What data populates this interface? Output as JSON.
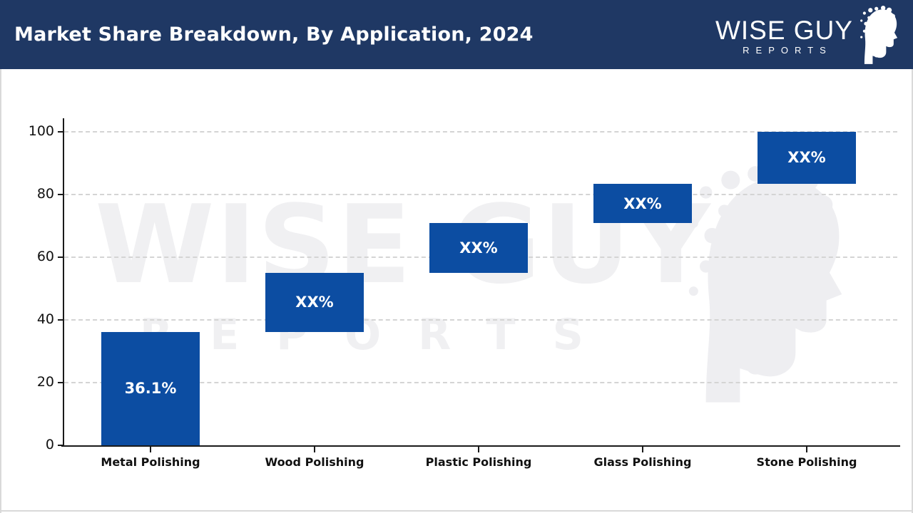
{
  "page": {
    "background": "#ffffff",
    "border_color": "#d9d9d9"
  },
  "header": {
    "title": "Market Share Breakdown, By Application, 2024",
    "background": "#1f3864",
    "text_color": "#ffffff",
    "logo": {
      "line1": "WISE GUY",
      "line2": "REPORTS",
      "head_icon": "dotted-face-profile"
    }
  },
  "watermark": {
    "line1": "WISE GUY",
    "line2": "REPORTS",
    "head_icon": "dotted-face-profile"
  },
  "chart_data": {
    "type": "bar",
    "subtype": "waterfall",
    "title": "Market Share Breakdown, By Application, 2024",
    "categories": [
      "Metal Polishing",
      "Wood Polishing",
      "Plastic Polishing",
      "Glass Polishing",
      "Stone Polishing"
    ],
    "segments": [
      {
        "category": "Metal Polishing",
        "start": 0,
        "end": 36.1,
        "label": "36.1%"
      },
      {
        "category": "Wood Polishing",
        "start": 36.1,
        "end": 55.0,
        "label": "XX%"
      },
      {
        "category": "Plastic Polishing",
        "start": 55.0,
        "end": 70.8,
        "label": "XX%"
      },
      {
        "category": "Glass Polishing",
        "start": 70.8,
        "end": 83.3,
        "label": "XX%"
      },
      {
        "category": "Stone Polishing",
        "start": 83.3,
        "end": 100.0,
        "label": "XX%"
      }
    ],
    "y_ticks": [
      0,
      20,
      40,
      60,
      80,
      100
    ],
    "ylim": [
      0,
      100
    ],
    "xlabel": "",
    "ylabel": "",
    "grid": "horizontal-dashed",
    "legend": "none",
    "bar_color": "#0c4da2",
    "bar_label_color": "#ffffff",
    "axis_color": "#1a1a1a"
  }
}
